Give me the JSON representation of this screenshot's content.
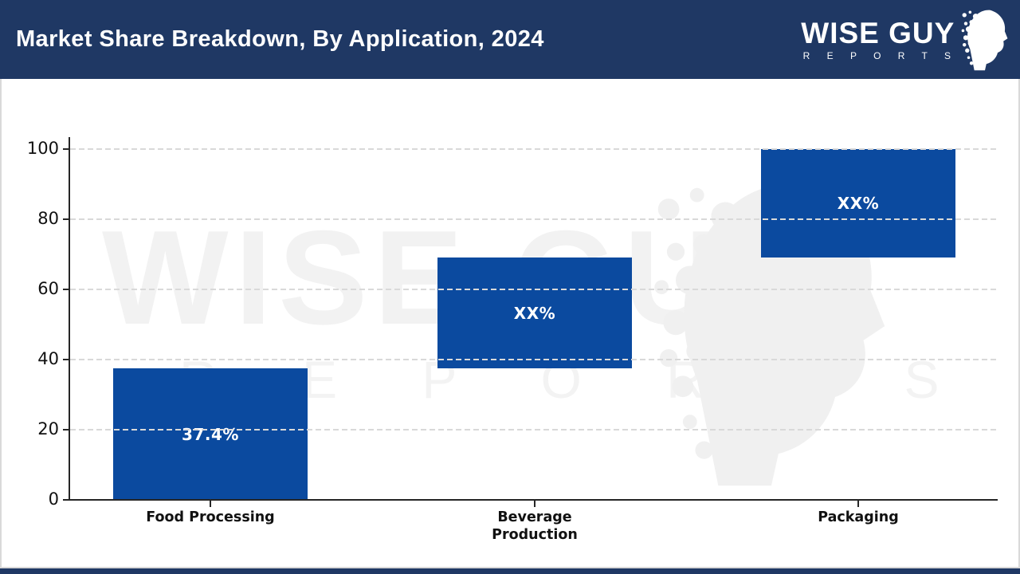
{
  "header": {
    "title": "Market Share Breakdown, By Application, 2024",
    "logo": {
      "name": "WISE GUY",
      "subtitle": "R E P O R T S"
    }
  },
  "watermark": {
    "line1": "WISE GUY",
    "line2": "R E P O R T S"
  },
  "chart_data": {
    "type": "bar",
    "subtype": "stacked-waterfall",
    "title": "Market Share Breakdown, By Application, 2024",
    "categories": [
      "Food Processing",
      "Beverage\nProduction",
      "Packaging"
    ],
    "segments": [
      {
        "category": "Food Processing",
        "start": 0,
        "end": 37.4,
        "label": "37.4%"
      },
      {
        "category": "Beverage Production",
        "start": 37.4,
        "end": 69,
        "label": "XX%"
      },
      {
        "category": "Packaging",
        "start": 69,
        "end": 100,
        "label": "XX%"
      }
    ],
    "xlabel": "",
    "ylabel": "",
    "ylim": [
      0,
      100
    ],
    "yticks": [
      "0",
      "20",
      "40",
      "60",
      "80",
      "100"
    ],
    "grid": "horizontal-dashed",
    "legend": "none",
    "bar_color": "#0b4a9f",
    "value_label_color": "#ffffff"
  },
  "colors": {
    "header_bg": "#1f3864",
    "footer_bg": "#1f3864",
    "bar": "#0b4a9f",
    "grid": "#d9d9d9",
    "axis": "#262626",
    "watermark": "#f2f2f2",
    "panel_border": "#d9d9d9"
  }
}
